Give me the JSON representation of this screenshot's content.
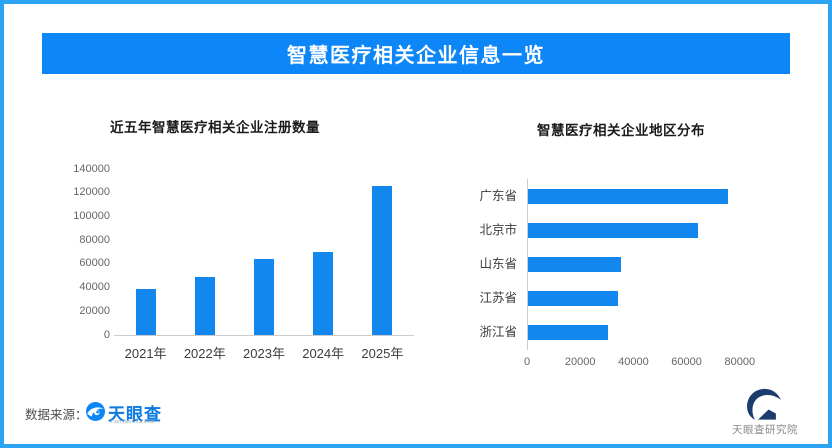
{
  "colors": {
    "frame_blue": "#2da4f1",
    "banner_blue": "#0d87f8",
    "bar_blue": "#1287ee",
    "banner_text": "#ffffff",
    "tianyancha_blue": "#0a7ae0",
    "institute_navy": "#1c3c6e"
  },
  "header": {
    "title": "智慧医疗相关企业信息一览"
  },
  "chart_data": [
    {
      "type": "bar",
      "title": "近五年智慧医疗相关企业注册数量",
      "categories": [
        "2021年",
        "2022年",
        "2023年",
        "2024年",
        "2025年"
      ],
      "values": [
        39000,
        49000,
        64000,
        70000,
        126000
      ],
      "yticks": [
        0,
        20000,
        40000,
        60000,
        80000,
        100000,
        120000,
        140000
      ],
      "ylim": [
        0,
        140000
      ],
      "xlabel": "",
      "ylabel": "",
      "grid": false,
      "legend": "none",
      "bar_color": "#1287ee"
    },
    {
      "type": "bar-horizontal",
      "title": "智慧医疗相关企业地区分布",
      "categories": [
        "广东省",
        "北京市",
        "山东省",
        "江苏省",
        "浙江省"
      ],
      "values": [
        75000,
        64000,
        35000,
        34000,
        30000
      ],
      "xticks": [
        0,
        20000,
        40000,
        60000,
        80000
      ],
      "xlim": [
        0,
        100000
      ],
      "xlabel": "",
      "ylabel": "",
      "grid": false,
      "legend": "none",
      "bar_color": "#1287ee"
    }
  ],
  "footer": {
    "source_label": "数据来源：",
    "source_logo_text": "天眼查",
    "source_logo_subtext": "TianYanCha.com",
    "brand_text": "天眼查研究院"
  }
}
